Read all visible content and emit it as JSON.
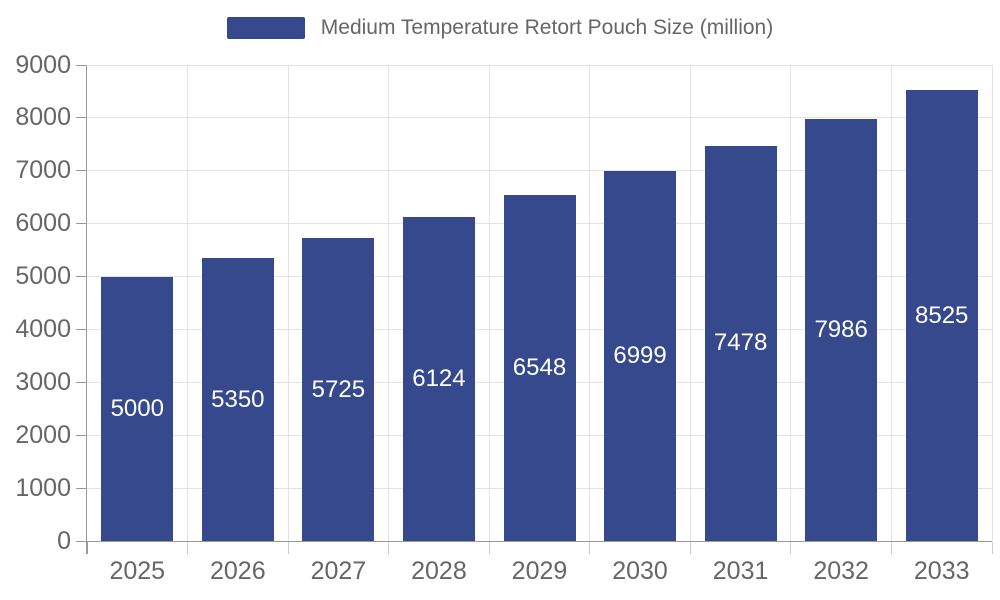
{
  "chart_data": {
    "type": "bar",
    "title": "Medium Temperature Retort Pouch Size (million)",
    "legend_entries": [
      "Medium Temperature Retort Pouch Size (million)"
    ],
    "legend_position": "top-center",
    "categories": [
      "2025",
      "2026",
      "2027",
      "2028",
      "2029",
      "2030",
      "2031",
      "2032",
      "2033"
    ],
    "series": [
      {
        "name": "Medium Temperature Retort Pouch Size (million)",
        "values": [
          5000,
          5350,
          5725,
          6124,
          6548,
          6999,
          7478,
          7986,
          8525
        ]
      }
    ],
    "xlabel": "",
    "ylabel": "",
    "ylim": [
      0,
      9000
    ],
    "y_ticks": [
      0,
      1000,
      2000,
      3000,
      4000,
      5000,
      6000,
      7000,
      8000,
      9000
    ],
    "grid": true,
    "value_labels": {
      "position": "inside-center",
      "color": "#ffffff"
    },
    "colors": {
      "bar": "#36498C",
      "grid_line": "#e3e3e3",
      "axis_line": "#999999",
      "tick_line": "#cccccc",
      "axis_text": "#666666",
      "legend_text": "#666666",
      "background": "#ffffff"
    }
  }
}
